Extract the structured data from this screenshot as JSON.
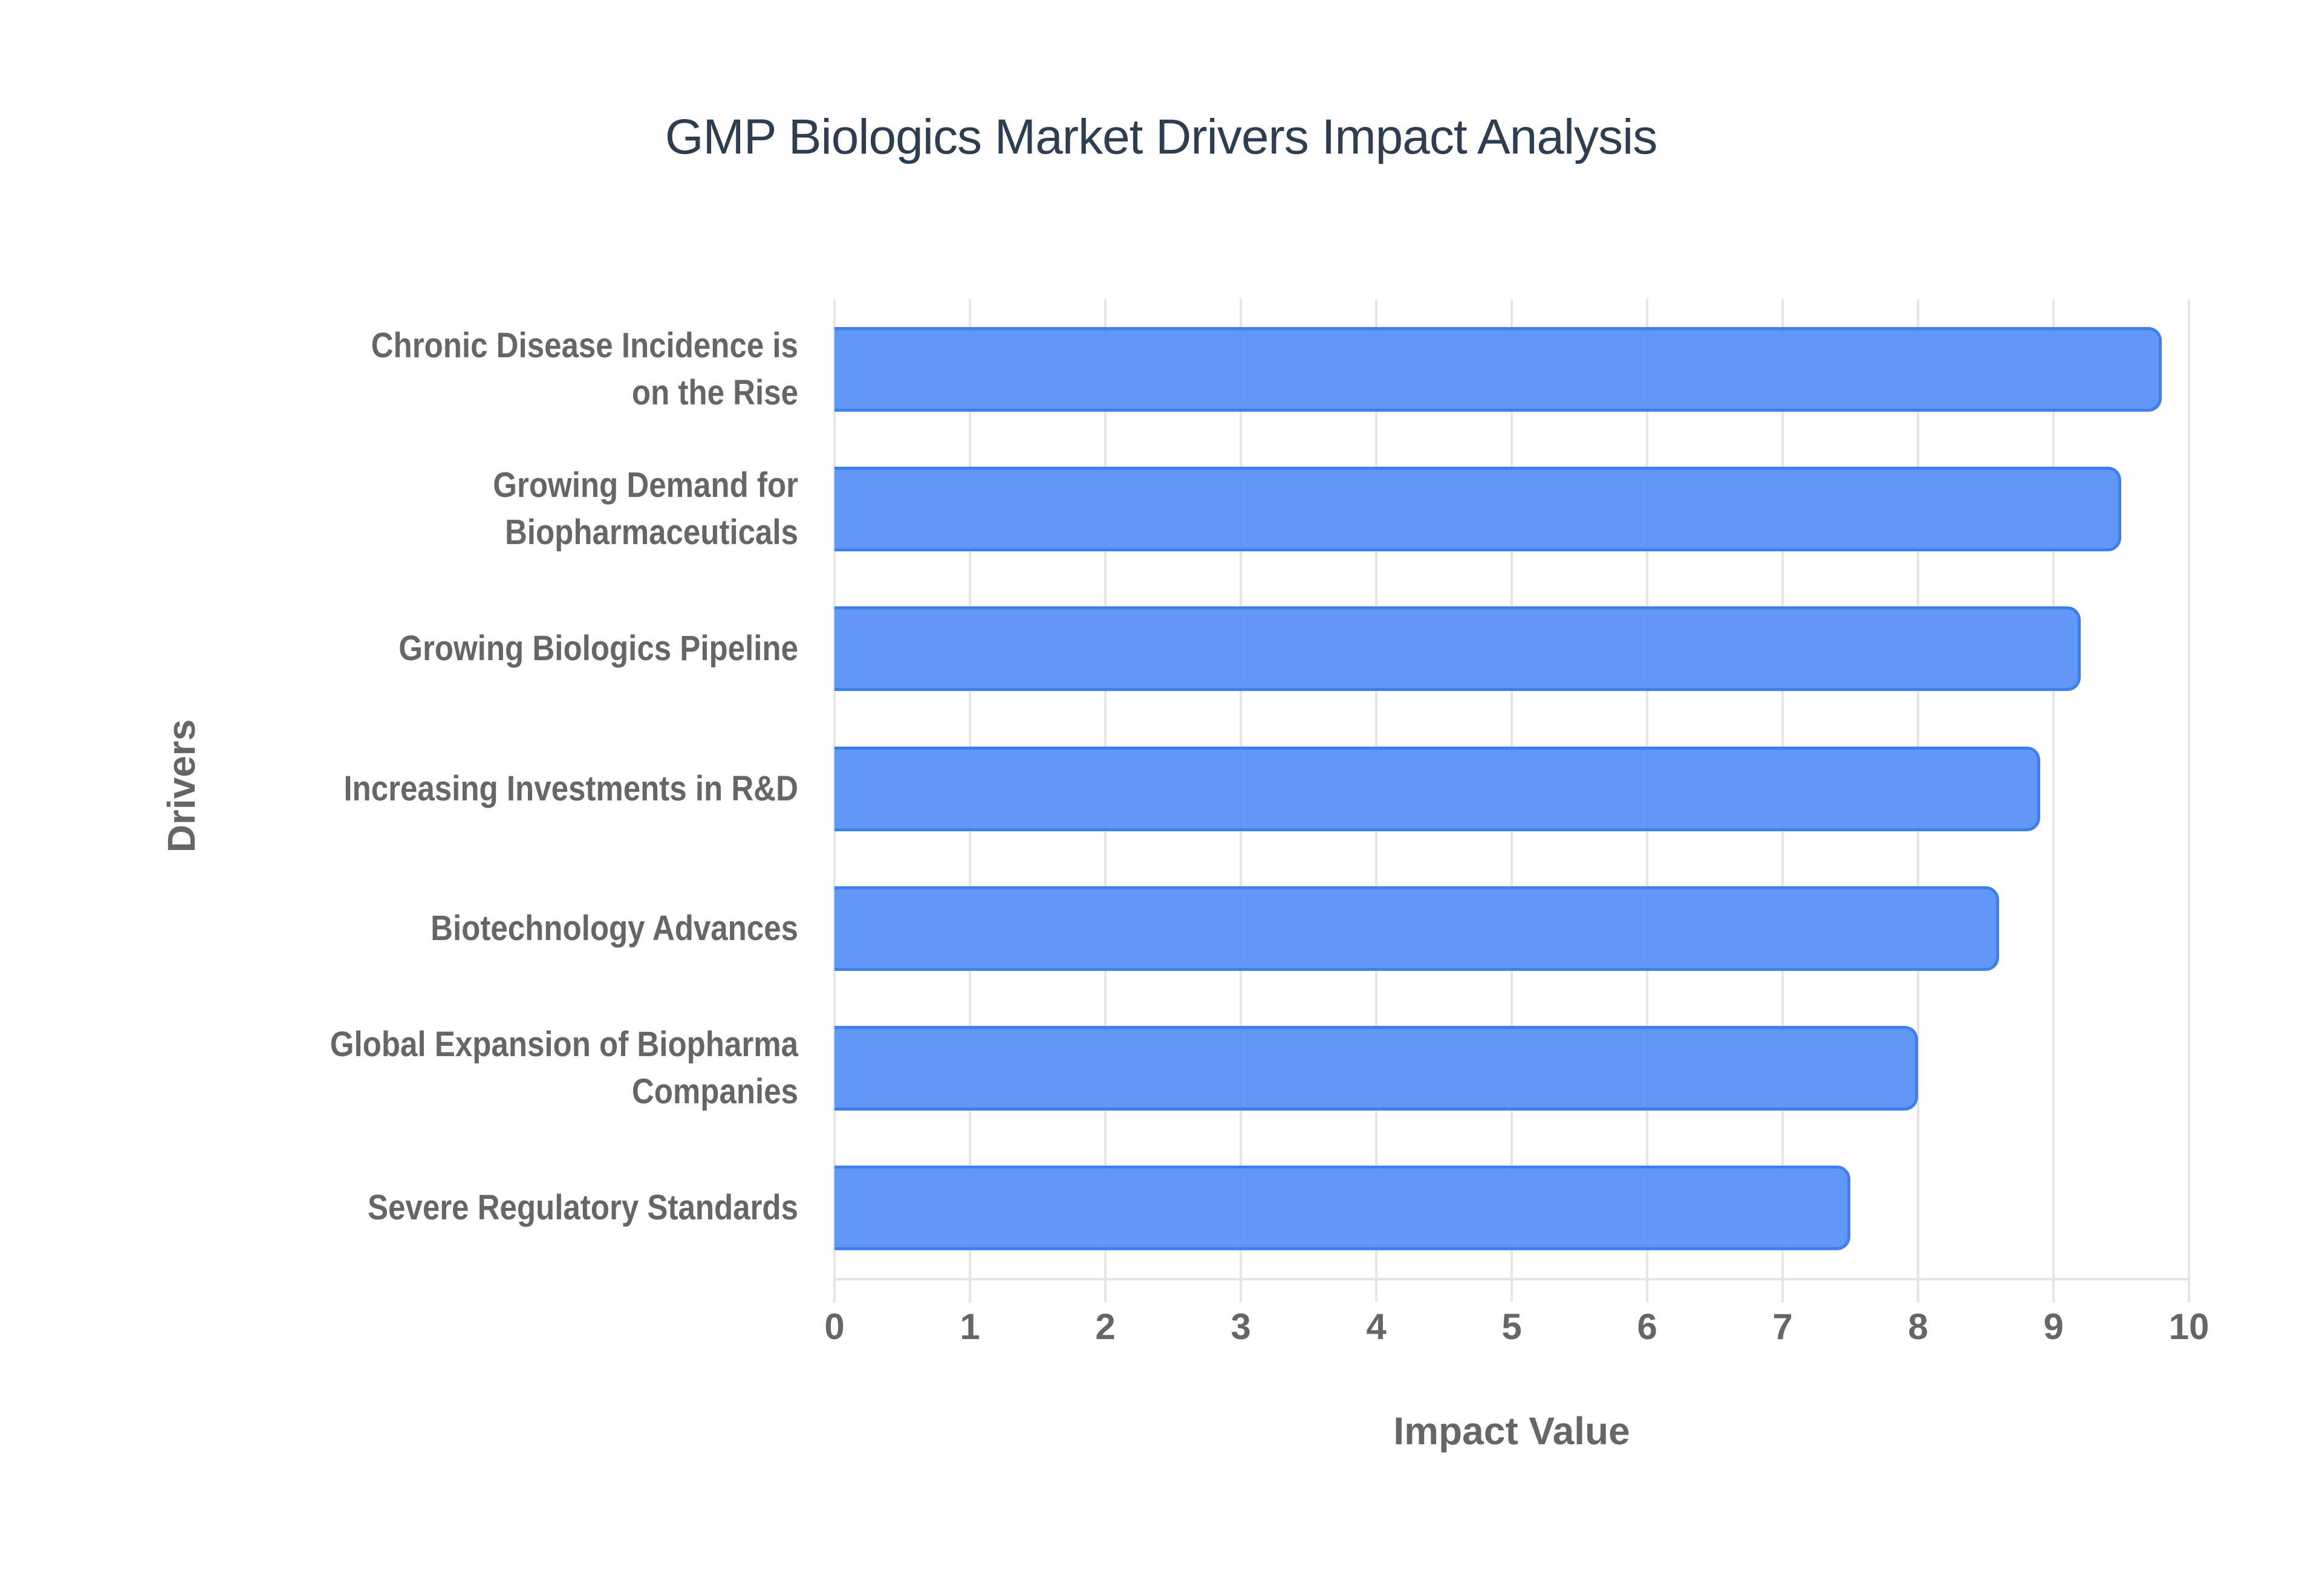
{
  "chart_data": {
    "type": "bar",
    "orientation": "horizontal",
    "title": "GMP Biologics Market Drivers Impact Analysis",
    "xlabel": "Impact Value",
    "ylabel": "Drivers",
    "categories": [
      "Chronic Disease Incidence is on the Rise",
      "Growing Demand for Biopharmaceuticals",
      "Growing Biologics Pipeline",
      "Increasing Investments in R&D",
      "Biotechnology Advances",
      "Global Expansion of Biopharma Companies",
      "Severe Regulatory Standards"
    ],
    "category_lines": [
      [
        "Chronic Disease Incidence is",
        "on the Rise"
      ],
      [
        "Growing Demand for",
        "Biopharmaceuticals"
      ],
      [
        "Growing Biologics Pipeline"
      ],
      [
        "Increasing Investments in R&D"
      ],
      [
        "Biotechnology Advances"
      ],
      [
        "Global Expansion of Biopharma",
        "Companies"
      ],
      [
        "Severe Regulatory Standards"
      ]
    ],
    "values": [
      9.8,
      9.5,
      9.2,
      8.9,
      8.6,
      8.0,
      7.5
    ],
    "xlim": [
      0,
      10
    ],
    "xticks": [
      "0",
      "1",
      "2",
      "3",
      "4",
      "5",
      "6",
      "7",
      "8",
      "9",
      "10"
    ],
    "grid": true,
    "legend": null,
    "bar_color": "#5b95f5",
    "bar_border_color": "#3d7fee"
  }
}
